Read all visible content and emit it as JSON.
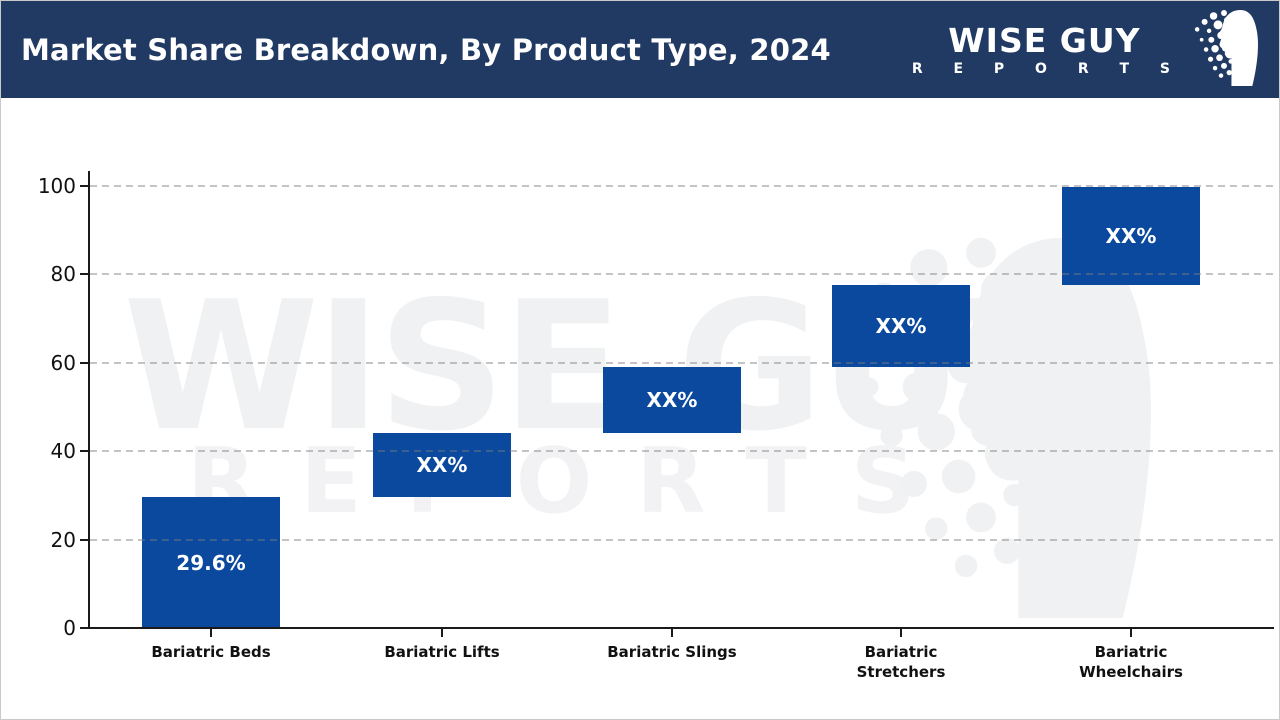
{
  "header": {
    "title": "Market Share Breakdown, By Product Type, 2024",
    "background_color": "#213a63",
    "logo": {
      "line1": "WISE GUY",
      "line2": "R E P O R T S",
      "icon": "face-profile-dots-icon",
      "color": "#ffffff"
    }
  },
  "watermark": {
    "line1": "WISE GUY",
    "line2": "REPORTS",
    "icon": "face-profile-dots-icon",
    "color": "#f0f1f3"
  },
  "chart_data": {
    "type": "bar",
    "subtype": "waterfall",
    "title": "Market Share Breakdown, By Product Type, 2024",
    "categories": [
      "Bariatric Beds",
      "Bariatric Lifts",
      "Bariatric Slings",
      "Bariatric\nStretchers",
      "Bariatric\nWheelchairs"
    ],
    "series": [
      {
        "name": "Market Share (%)",
        "segments": [
          {
            "category": "Bariatric Beds",
            "start": 0,
            "end": 29.6,
            "label": "29.6%"
          },
          {
            "category": "Bariatric Lifts",
            "start": 29.6,
            "end": 44.2,
            "label": "XX%"
          },
          {
            "category": "Bariatric Slings",
            "start": 44.2,
            "end": 59.1,
            "label": "XX%"
          },
          {
            "category": "Bariatric Stretchers",
            "start": 59.1,
            "end": 77.7,
            "label": "XX%"
          },
          {
            "category": "Bariatric Wheelchairs",
            "start": 77.7,
            "end": 99.7,
            "label": "XX%"
          }
        ]
      }
    ],
    "xlabel": "",
    "ylabel": "",
    "ylim": [
      0,
      105
    ],
    "yticks": [
      0,
      20,
      40,
      60,
      80,
      100
    ],
    "grid": "horizontal-dashed",
    "legend": "none",
    "bar_color": "#0b499e",
    "bar_label_color": "#ffffff",
    "axis_color": "#1a1a1a"
  }
}
